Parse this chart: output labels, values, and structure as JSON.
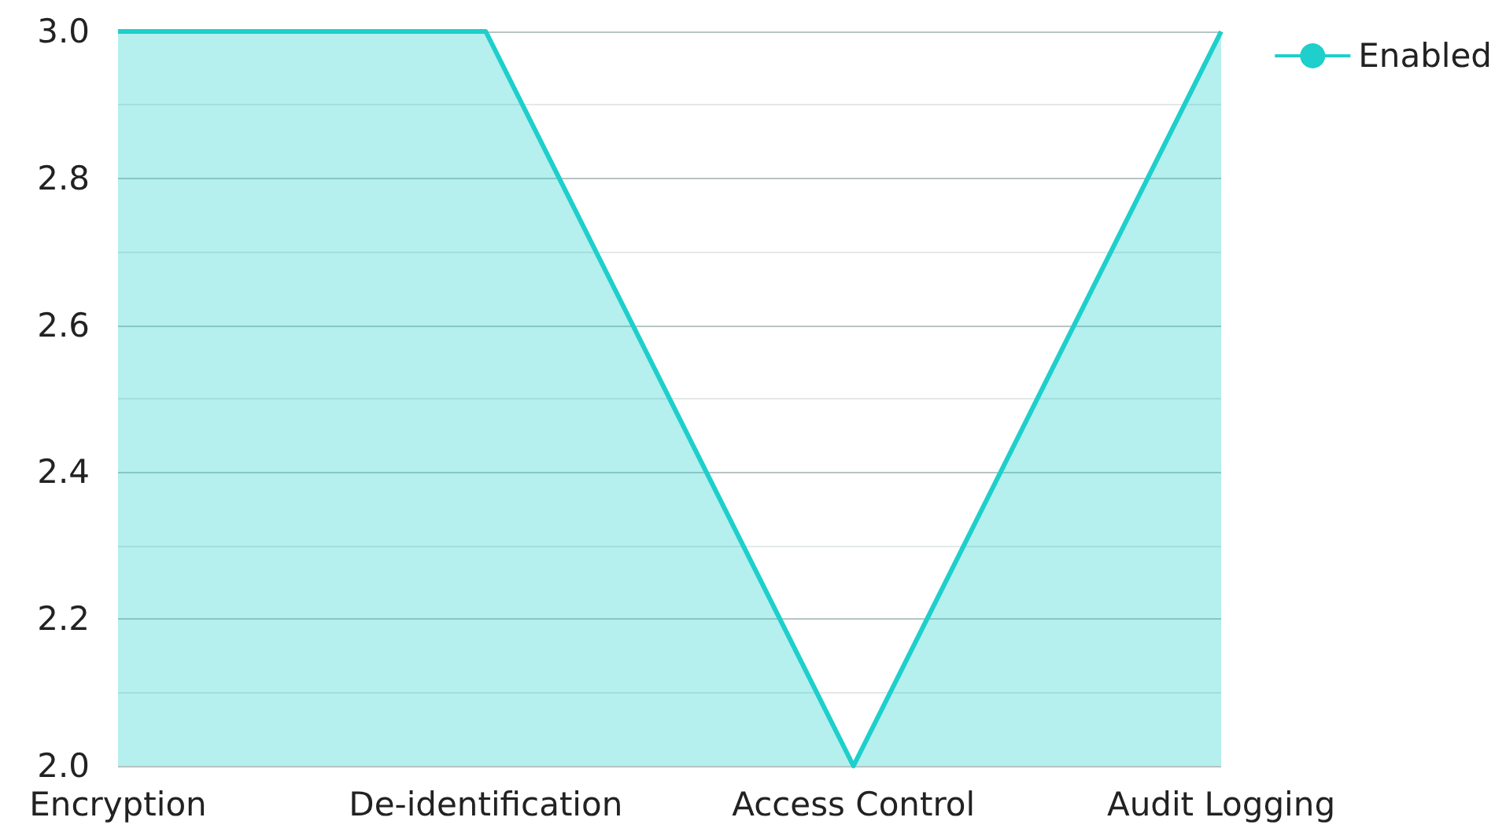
{
  "chart_data": {
    "type": "area",
    "categories": [
      "Encryption",
      "De-identification",
      "Access Control",
      "Audit Logging"
    ],
    "series": [
      {
        "name": "Enabled",
        "color": "#1ecfcb",
        "values": [
          3,
          3,
          2,
          3
        ]
      }
    ],
    "ylim": [
      2,
      3
    ],
    "yticks": [
      {
        "value": 2,
        "label": "2.0"
      },
      {
        "value": 2.1,
        "label": null
      },
      2.2,
      {
        "value": 2.3,
        "label": null
      },
      2.4,
      {
        "value": 2.5,
        "label": null
      },
      2.6,
      {
        "value": 2.7,
        "label": null
      },
      2.8,
      {
        "value": 2.9,
        "label": null
      },
      {
        "value": 3,
        "label": "3.0"
      }
    ],
    "grid": "y",
    "legend": "top right"
  }
}
